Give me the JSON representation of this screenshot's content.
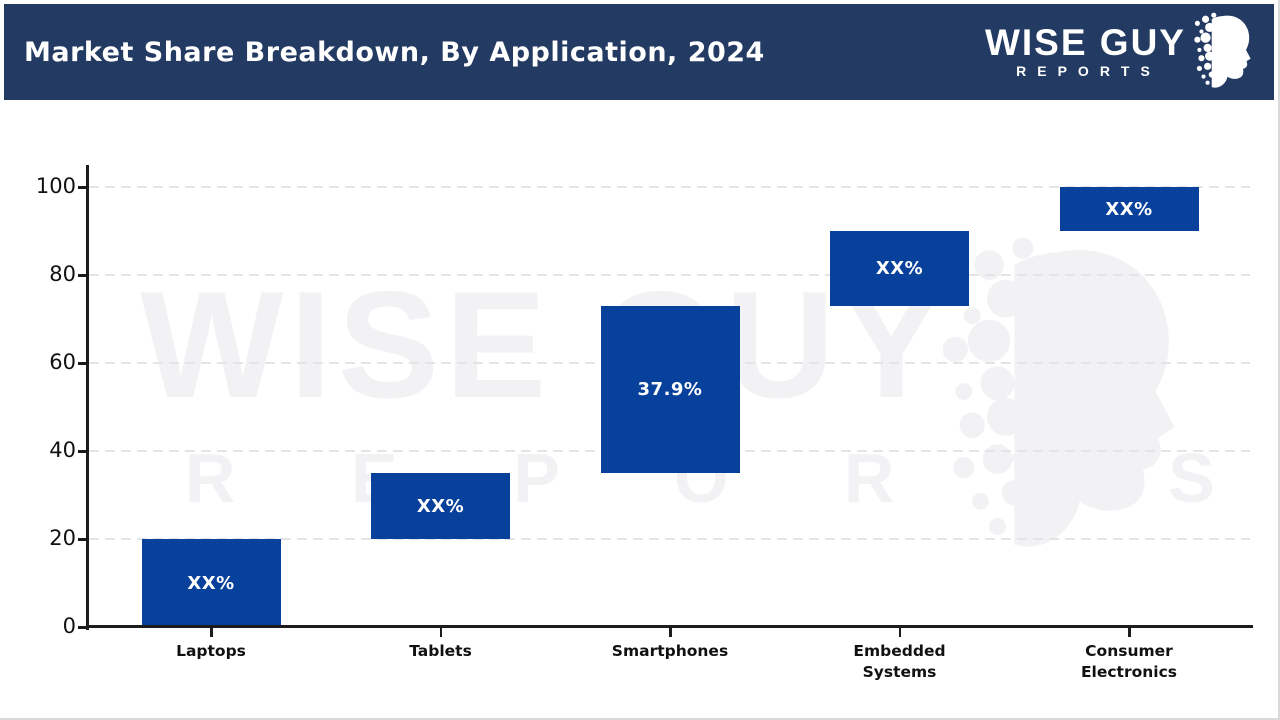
{
  "header": {
    "title": "Market Share Breakdown, By Application, 2024",
    "logo": {
      "line1": "WISE GUY",
      "line2": "REPORTS"
    }
  },
  "watermark": {
    "line1": "WISE GUY",
    "line2": "REPORTS"
  },
  "colors": {
    "header_bg": "#233a62",
    "bar": "#07419b",
    "grid": "#e4e4e6",
    "axis": "#1c1c1c",
    "bar_label_text": "#ffffff",
    "watermark": "#f2f2f4"
  },
  "chart_data": {
    "type": "bar",
    "variant": "floating-waterfall",
    "title": "Market Share Breakdown, By Application, 2024",
    "xlabel": "",
    "ylabel": "",
    "categories": [
      "Laptops",
      "Tablets",
      "Smartphones",
      "Embedded Systems",
      "Consumer Electronics"
    ],
    "segments": [
      {
        "category": "Laptops",
        "from": 0,
        "to": 20,
        "label": "XX%"
      },
      {
        "category": "Tablets",
        "from": 20,
        "to": 35,
        "label": "XX%"
      },
      {
        "category": "Smartphones",
        "from": 35,
        "to": 73,
        "label": "37.9%"
      },
      {
        "category": "Embedded Systems",
        "from": 73,
        "to": 90,
        "label": "XX%"
      },
      {
        "category": "Consumer Electronics",
        "from": 90,
        "to": 100,
        "label": "XX%"
      }
    ],
    "y_ticks": [
      0,
      20,
      40,
      60,
      80,
      100
    ],
    "ylim": [
      0,
      100
    ],
    "grid": "dashed-horizontal",
    "legend": "none"
  }
}
